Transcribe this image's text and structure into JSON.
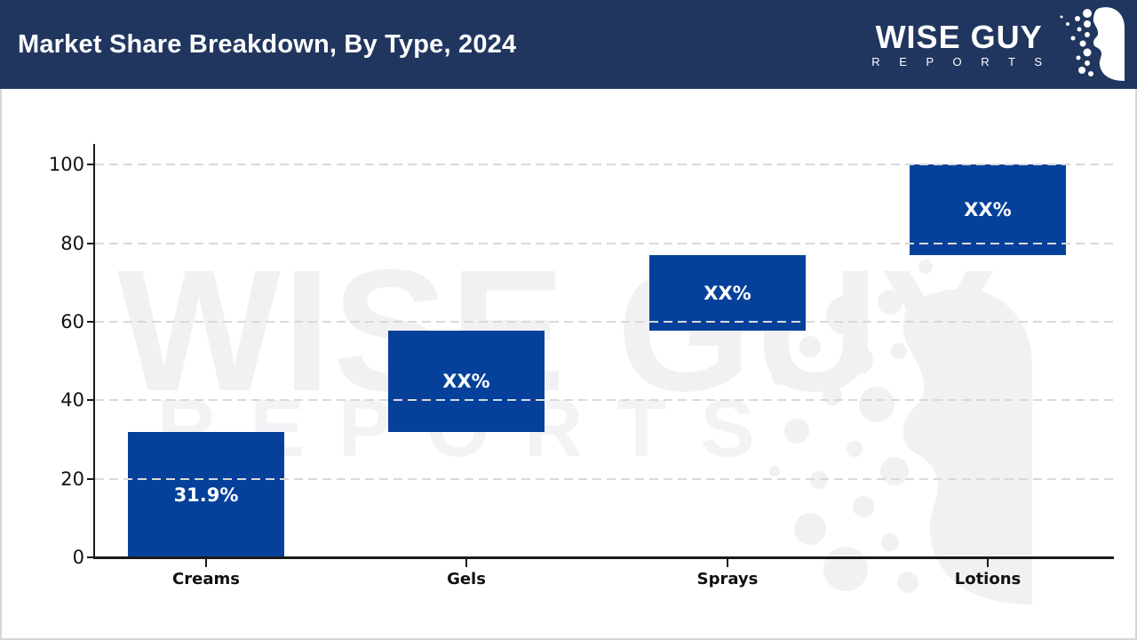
{
  "header": {
    "title": "Market Share Breakdown, By Type, 2024",
    "bg_color": "#21365f",
    "brand": {
      "line1": "WISE GUY",
      "line2": "REPORTS"
    }
  },
  "watermark": {
    "line1": "WISE GUY",
    "line2": "REPORTS"
  },
  "chart_data": {
    "type": "bar",
    "subtype": "waterfall",
    "title": "Market Share Breakdown, By Type, 2024",
    "categories": [
      "Creams",
      "Gels",
      "Sprays",
      "Lotions"
    ],
    "segments": [
      {
        "category": "Creams",
        "start": 0,
        "end": 31.9,
        "label": "31.9%"
      },
      {
        "category": "Gels",
        "start": 31.9,
        "end": 57.7,
        "label": "XX%"
      },
      {
        "category": "Sprays",
        "start": 57.7,
        "end": 77.0,
        "label": "XX%"
      },
      {
        "category": "Lotions",
        "start": 77.0,
        "end": 100,
        "label": "XX%"
      }
    ],
    "xlabel": "",
    "ylabel": "",
    "ylim": [
      0,
      105
    ],
    "yticks": [
      0,
      20,
      40,
      60,
      80,
      100
    ],
    "grid": "horizontal-dashed",
    "bar_color": "#05419a",
    "value_label_color": "#ffffff",
    "axis_color": "#1a1a1a",
    "gridline_color": "#d9d9d9"
  }
}
